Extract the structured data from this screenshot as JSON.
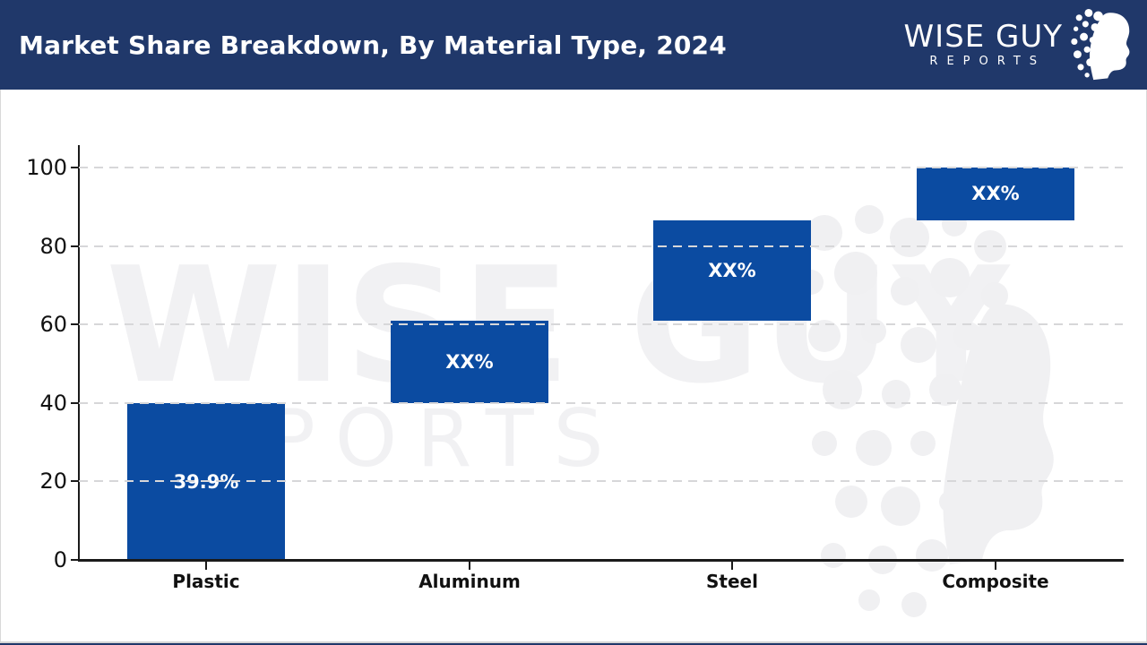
{
  "header": {
    "title": "Market Share Breakdown, By Material Type, 2024",
    "bg_color": "#20386a",
    "logo": {
      "line1": "WISE GUY",
      "line2": "REPORTS"
    }
  },
  "watermark": {
    "line1": "WISE GUY",
    "line2": "REPORTS"
  },
  "chart_data": {
    "type": "bar",
    "subtype": "waterfall",
    "title": "Market Share Breakdown, By Material Type, 2024",
    "categories": [
      "Plastic",
      "Aluminum",
      "Steel",
      "Composite"
    ],
    "bars": [
      {
        "category": "Plastic",
        "start": 0,
        "end": 39.9,
        "label": "39.9%"
      },
      {
        "category": "Aluminum",
        "start": 39.9,
        "end": 60.9,
        "label": "XX%"
      },
      {
        "category": "Steel",
        "start": 60.9,
        "end": 86.6,
        "label": "XX%"
      },
      {
        "category": "Composite",
        "start": 86.6,
        "end": 100,
        "label": "XX%"
      }
    ],
    "displayed_labels": [
      "39.9%",
      "XX%",
      "XX%",
      "XX%"
    ],
    "yticks": [
      0,
      20,
      40,
      60,
      80,
      100
    ],
    "ylim": [
      0,
      105.5
    ],
    "xlabel": "",
    "ylabel": "",
    "bar_color": "#0b4ba1",
    "bar_label_color": "#ffffff",
    "gridlines": "horizontal-dashed",
    "gridline_color": "#d7d7d9",
    "legend": "none"
  }
}
